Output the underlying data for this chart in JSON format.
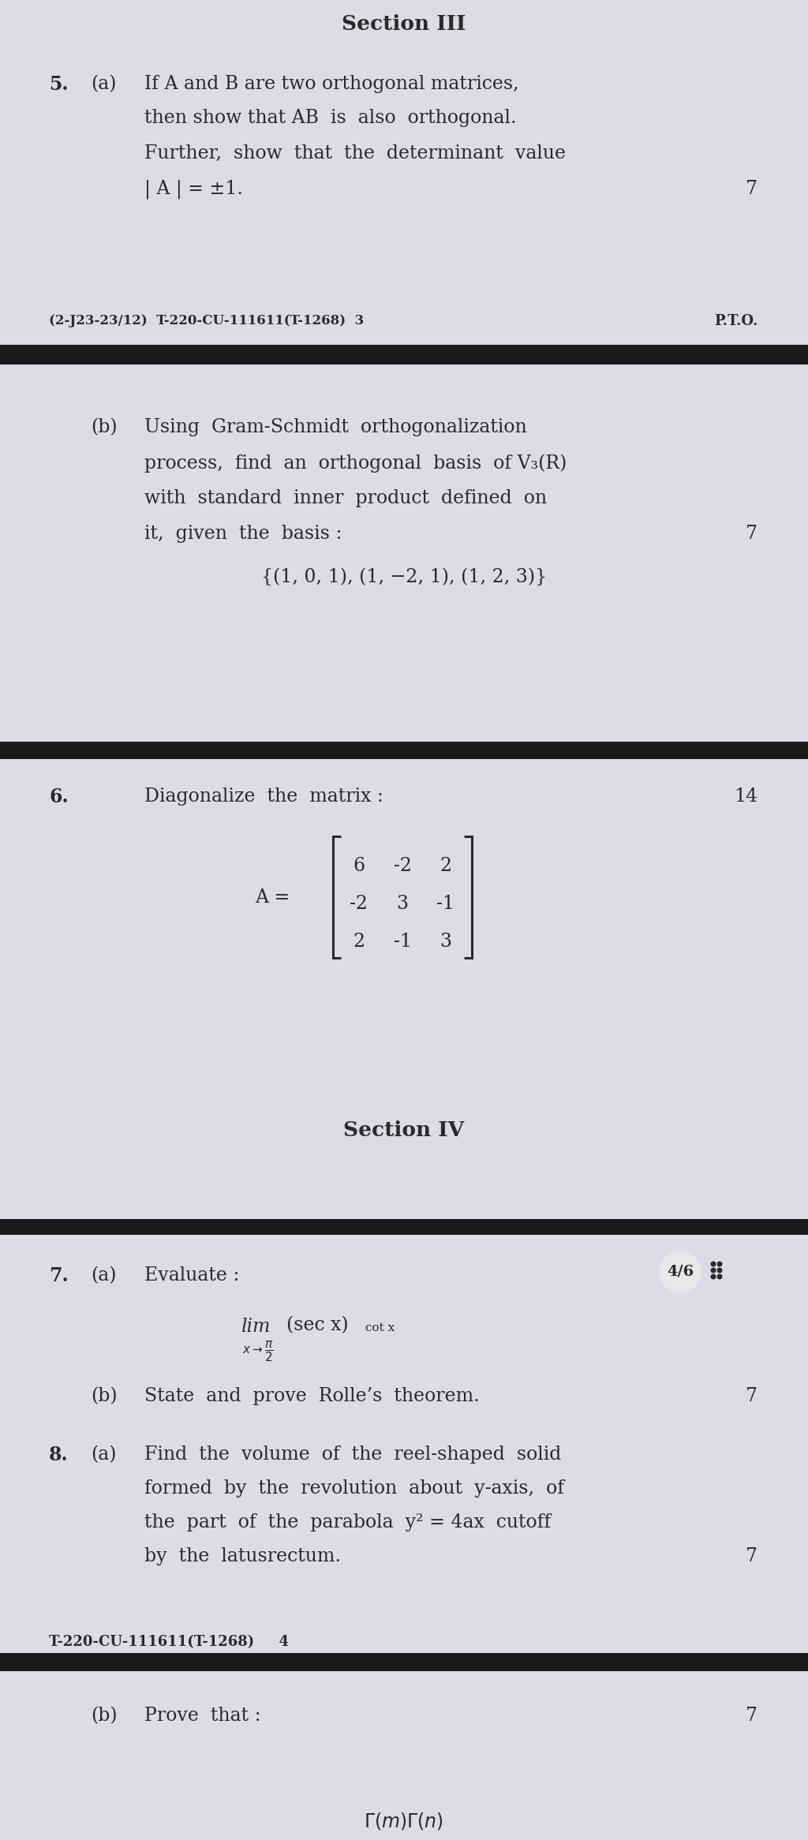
{
  "bg_color": "#1a1a1a",
  "card1_bg": "#dcdce8",
  "card2_bg": "#dcdce8",
  "card3_bg": "#dcdce8",
  "card4_bg": "#dcdce8",
  "card5_bg": "#dcdce8",
  "text_color": "#2a2a2a",
  "section3_header": "Section III",
  "q5a_num": "5.",
  "q5a_part": "(a)",
  "q5a_line1": "If A and B are two orthogonal matrices,",
  "q5a_line2": "then show that AB  is  also  orthogonal.",
  "q5a_line3": "Further,  show  that  the  determinant  value",
  "q5a_line4": "| A | = ±1.",
  "q5a_marks": "7",
  "footer_left": "(2-J23-23/12)  T-220-CU-111611(T-1268)  3",
  "footer_right": "P.T.O.",
  "q5b_part": "(b)",
  "q5b_line1": "Using  Gram-Schmidt  orthogonalization",
  "q5b_line2": "process,  find  an  orthogonal  basis  of V₃(R)",
  "q5b_line3": "with  standard  inner  product  defined  on",
  "q5b_line4": "it,  given  the  basis :",
  "q5b_marks": "7",
  "q5b_set": "{(1, 0, 1), (1, −2, 1), (1, 2, 3)}",
  "q6_num": "6.",
  "q6_line1": "Diagonalize  the  matrix :",
  "q6_marks": "14",
  "q6_matrix": [
    [
      6,
      -2,
      2
    ],
    [
      -2,
      3,
      -1
    ],
    [
      2,
      -1,
      3
    ]
  ],
  "section4_header": "Section IV",
  "q7_num": "7.",
  "q7a_part": "(a)",
  "q7a_line1": "Evaluate :",
  "q7a_marks": "4/6",
  "q7b_part": "(b)",
  "q7b_line1": "State  and  prove  Rolle’s  theorem.",
  "q7b_marks": "7",
  "q8_num": "8.",
  "q8a_part": "(a)",
  "q8a_line1": "Find  the  volume  of  the  reel-shaped  solid",
  "q8a_line2": "formed  by  the  revolution  about  y-axis,  of",
  "q8a_line3": "the  part  of  the  parabola  y² = 4ax  cutoff",
  "q8a_line4": "by  the  latusrectum.",
  "q8a_marks": "7",
  "footer2_left": "T-220-CU-111611(T-1268)     4",
  "q8b_part": "(b)",
  "q8b_line1": "Prove  that :",
  "q8b_marks": "7",
  "q8b_expr": "Γ(m)Γ(n)"
}
